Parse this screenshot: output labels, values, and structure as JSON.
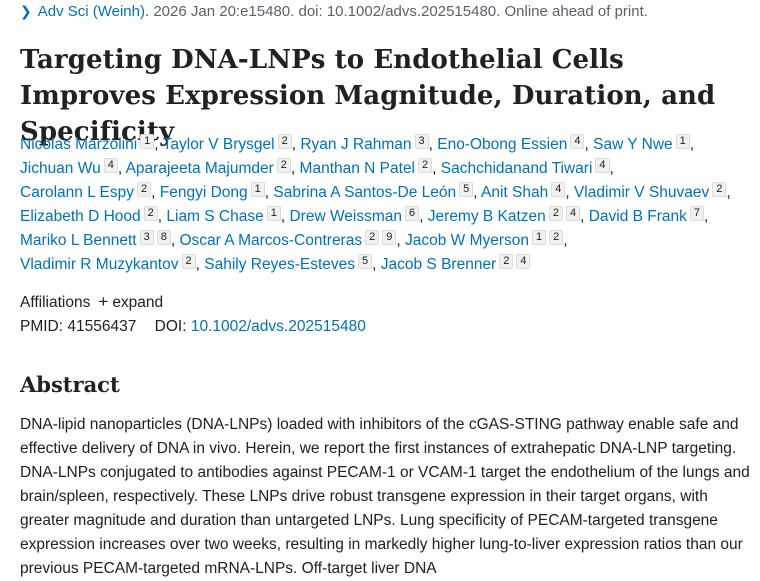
{
  "citation": {
    "journal": "Adv Sci (Weinh).",
    "details": "2026 Jan 20:e15480. doi: 10.1002/advs.202515480. Online ahead of print."
  },
  "title": "Targeting DNA-LNPs to Endothelial Cells Improves Expression Magnitude, Duration, and Specificity",
  "authors": [
    {
      "name": "Nicolas Marzolini",
      "sups": [
        "1"
      ]
    },
    {
      "name": "Taylor V Brysgel",
      "sups": [
        "2"
      ]
    },
    {
      "name": "Ryan J Rahman",
      "sups": [
        "3"
      ]
    },
    {
      "name": "Eno-Obong Essien",
      "sups": [
        "4"
      ]
    },
    {
      "name": "Saw Y Nwe",
      "sups": [
        "1"
      ]
    },
    {
      "name": "Jichuan Wu",
      "sups": [
        "4"
      ]
    },
    {
      "name": "Aparajeeta Majumder",
      "sups": [
        "2"
      ]
    },
    {
      "name": "Manthan N Patel",
      "sups": [
        "2"
      ]
    },
    {
      "name": "Sachchidanand Tiwari",
      "sups": [
        "4"
      ]
    },
    {
      "name": "Carolann L Espy",
      "sups": [
        "2"
      ]
    },
    {
      "name": "Fengyi Dong",
      "sups": [
        "1"
      ]
    },
    {
      "name": "Sabrina A Santos-De León",
      "sups": [
        "5"
      ]
    },
    {
      "name": "Anit Shah",
      "sups": [
        "4"
      ]
    },
    {
      "name": "Vladimir V Shuvaev",
      "sups": [
        "2"
      ]
    },
    {
      "name": "Elizabeth D Hood",
      "sups": [
        "2"
      ]
    },
    {
      "name": "Liam S Chase",
      "sups": [
        "1"
      ]
    },
    {
      "name": "Drew Weissman",
      "sups": [
        "6"
      ]
    },
    {
      "name": "Jeremy B Katzen",
      "sups": [
        "2",
        "4"
      ]
    },
    {
      "name": "David B Frank",
      "sups": [
        "7"
      ]
    },
    {
      "name": "Mariko L Bennett",
      "sups": [
        "3",
        "8"
      ]
    },
    {
      "name": "Oscar A Marcos-Contreras",
      "sups": [
        "2",
        "9"
      ]
    },
    {
      "name": "Jacob W Myerson",
      "sups": [
        "1",
        "2"
      ]
    },
    {
      "name": "Vladimir R Muzykantov",
      "sups": [
        "2"
      ]
    },
    {
      "name": "Sahily Reyes-Esteves",
      "sups": [
        "5"
      ]
    },
    {
      "name": "Jacob S Brenner",
      "sups": [
        "2",
        "4"
      ]
    }
  ],
  "affiliations": {
    "label": "Affiliations",
    "expand_label": "expand"
  },
  "ids": {
    "pmid_label": "PMID:",
    "pmid": "41556437",
    "doi_label": "DOI:",
    "doi": "10.1002/advs.202515480"
  },
  "abstract": {
    "heading": "Abstract",
    "text": "DNA-lipid nanoparticles (DNA-LNPs) loaded with inhibitors of the cGAS-STING pathway enable safe and effective delivery of DNA in vivo. Herein, we report the first instances of extrahepatic DNA-LNP targeting. DNA-LNPs conjugated to antibodies against PECAM-1 or VCAM-1 target the endothelium of the lungs and brain/spleen, respectively. These LNPs drive robust transgene expression in their target organs, with greater magnitude and duration than untargeted LNPs. Lung specificity of PECAM-targeted transgene expression increases over two weeks, resulting in markedly higher lung-to-liver expression ratios than our previous PECAM-targeted mRNA-LNPs. Off-target liver DNA"
  }
}
